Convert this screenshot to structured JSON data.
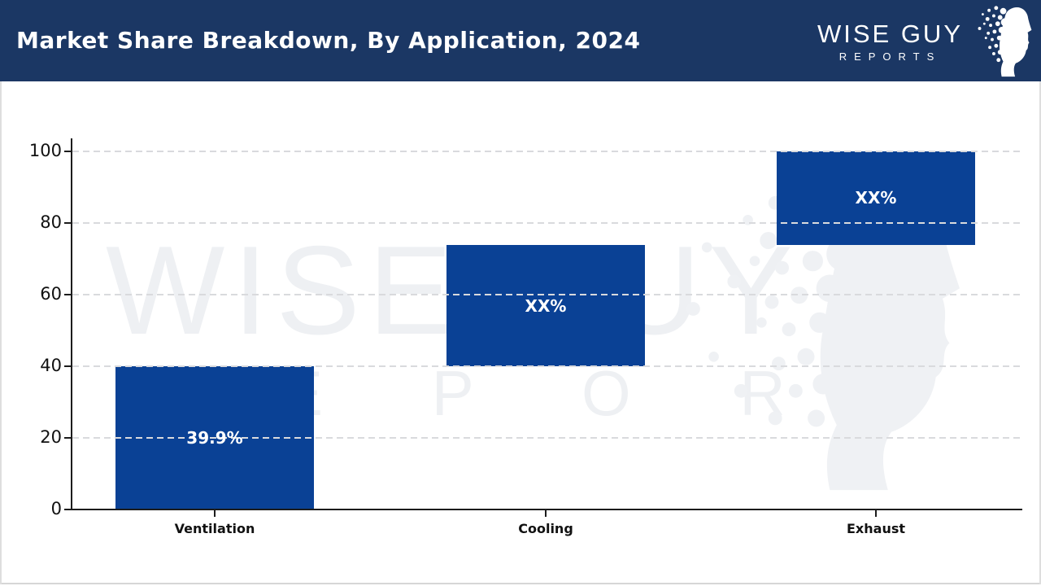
{
  "header": {
    "title": "Market Share Breakdown, By Application, 2024",
    "logo": {
      "name": "Wise Guy Reports",
      "line1": "WISE GUY",
      "line2": "REPORTS"
    }
  },
  "watermark": {
    "line1": "WISE GUY",
    "line2": "R E P O R T S"
  },
  "chart_data": {
    "type": "bar",
    "subtype": "waterfall-stacked-percentage",
    "title": "Market Share Breakdown, By Application, 2024",
    "categories": [
      "Ventilation",
      "Cooling",
      "Exhaust"
    ],
    "segments": [
      {
        "category": "Ventilation",
        "from": 0,
        "to": 39.9,
        "label": "39.9%"
      },
      {
        "category": "Cooling",
        "from": 39.9,
        "to": 73.9,
        "label": "XX%"
      },
      {
        "category": "Exhaust",
        "from": 73.9,
        "to": 100,
        "label": "XX%"
      }
    ],
    "ylabel": "",
    "xlabel": "",
    "ylim": [
      0,
      100
    ],
    "yticks": [
      0,
      20,
      40,
      60,
      80,
      100
    ],
    "grid": "horizontal-dashed",
    "legend": "none",
    "bar_color": "#0a4195",
    "bar_label_color": "#ffffff",
    "header_color": "#1b3764",
    "axis_color": "#1c1c1c",
    "gridline_color": "#d9dadd"
  }
}
